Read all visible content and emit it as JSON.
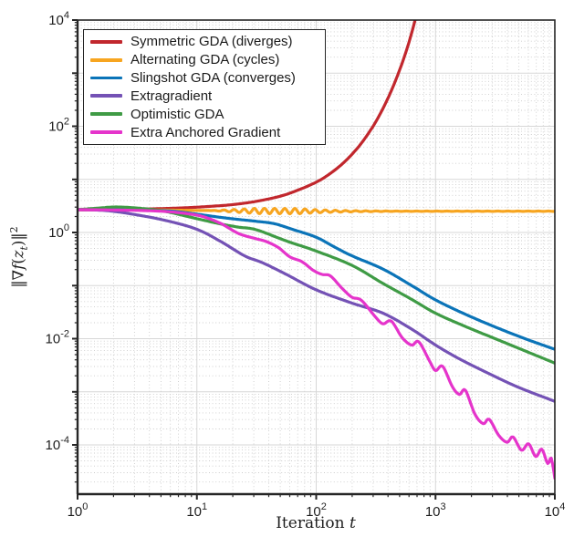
{
  "figure": {
    "background": "#ffffff",
    "axis_color": "#262626",
    "grid_major_color": "#d7d7d7",
    "grid_minor_color": "#cccccc",
    "tick_label_color": "#1f1f1f",
    "tick_base": "10"
  },
  "x_axis": {
    "label_parts": [
      {
        "text": "Iteration ",
        "italic": false
      },
      {
        "text": "t",
        "italic": true
      }
    ],
    "tick_exponents": [
      0,
      1,
      2,
      3,
      4
    ]
  },
  "y_axis": {
    "label_parts": [
      {
        "text": "‖∇",
        "italic": false
      },
      {
        "text": "f",
        "italic": true
      },
      {
        "text": "(",
        "italic": false
      },
      {
        "text": "z",
        "italic": true
      },
      {
        "text": "t",
        "italic": true,
        "script": "sub"
      },
      {
        "text": ")‖",
        "italic": false
      },
      {
        "text": "2",
        "italic": false,
        "script": "sup"
      }
    ],
    "tick_exponents": [
      4,
      2,
      0,
      -2,
      -4
    ]
  },
  "legend": {
    "position": "top-left",
    "items": [
      {
        "label": "Symmetric GDA (diverges)",
        "color": "#C1272D"
      },
      {
        "label": "Alternating GDA (cycles)",
        "color": "#F7A520"
      },
      {
        "label": "Slingshot GDA (converges)",
        "color": "#0B74B8"
      },
      {
        "label": "Extragradient",
        "color": "#7452B5"
      },
      {
        "label": "Optimistic GDA",
        "color": "#3F9B45"
      },
      {
        "label": "Extra Anchored Gradient",
        "color": "#E534CB"
      }
    ]
  },
  "chart_data": {
    "type": "line",
    "x_scale": "log",
    "y_scale": "log",
    "title": "",
    "xlabel": "Iteration t",
    "ylabel": "||∇f(z_t)||^2",
    "xlim": [
      1,
      10000
    ],
    "ylim": [
      1.2e-05,
      10000
    ],
    "grid": "major solid, minor dotted",
    "legend_position": "top-left",
    "note": "points_log10 are [log10(t), log10(value)] control points read from the figure",
    "series": [
      {
        "name": "Symmetric GDA (diverges)",
        "color": "#C1272D",
        "points_log10": [
          [
            0,
            0.425
          ],
          [
            0.3,
            0.43
          ],
          [
            0.6,
            0.443
          ],
          [
            0.9,
            0.465
          ],
          [
            1.1,
            0.49
          ],
          [
            1.3,
            0.525
          ],
          [
            1.5,
            0.587
          ],
          [
            1.7,
            0.684
          ],
          [
            1.85,
            0.8
          ],
          [
            2.0,
            0.947
          ],
          [
            2.1,
            1.083
          ],
          [
            2.2,
            1.255
          ],
          [
            2.3,
            1.472
          ],
          [
            2.4,
            1.745
          ],
          [
            2.5,
            2.088
          ],
          [
            2.6,
            2.52
          ],
          [
            2.7,
            3.064
          ],
          [
            2.78,
            3.6
          ],
          [
            2.85,
            4.18
          ]
        ]
      },
      {
        "name": "Alternating GDA (cycles)",
        "color": "#F7A520",
        "baseline_log10": [
          [
            0,
            0.43
          ],
          [
            0.6,
            0.425
          ],
          [
            1.0,
            0.415
          ],
          [
            1.5,
            0.405
          ],
          [
            2.0,
            0.4
          ],
          [
            3.0,
            0.4
          ],
          [
            4.0,
            0.4
          ]
        ],
        "oscillation": {
          "period_log10": 0.085,
          "amp_max": 0.05,
          "ramp_start": 1.12,
          "ramp_end": 1.5,
          "decay_start": 1.85,
          "decay_rate": 3.2,
          "amp_min": 0.003
        }
      },
      {
        "name": "Slingshot GDA (converges)",
        "color": "#0B74B8",
        "points_log10": [
          [
            0,
            0.43
          ],
          [
            0.3,
            0.43
          ],
          [
            0.6,
            0.42
          ],
          [
            0.8,
            0.4
          ],
          [
            1.0,
            0.345
          ],
          [
            1.25,
            0.27
          ],
          [
            1.5,
            0.21
          ],
          [
            1.65,
            0.165
          ],
          [
            1.8,
            0.06
          ],
          [
            2.0,
            -0.09
          ],
          [
            2.15,
            -0.27
          ],
          [
            2.3,
            -0.44
          ],
          [
            2.56,
            -0.69
          ],
          [
            2.8,
            -1.0
          ],
          [
            3.0,
            -1.27
          ],
          [
            3.25,
            -1.54
          ],
          [
            3.5,
            -1.78
          ],
          [
            3.75,
            -2.0
          ],
          [
            4.0,
            -2.2
          ]
        ]
      },
      {
        "name": "Extragradient",
        "color": "#7452B5",
        "points_log10": [
          [
            0,
            0.43
          ],
          [
            0.25,
            0.41
          ],
          [
            0.5,
            0.33
          ],
          [
            0.75,
            0.22
          ],
          [
            1.0,
            0.06
          ],
          [
            1.2,
            -0.17
          ],
          [
            1.4,
            -0.44
          ],
          [
            1.55,
            -0.57
          ],
          [
            1.75,
            -0.79
          ],
          [
            2.0,
            -1.08
          ],
          [
            2.3,
            -1.33
          ],
          [
            2.56,
            -1.52
          ],
          [
            2.8,
            -1.82
          ],
          [
            3.0,
            -2.12
          ],
          [
            3.2,
            -2.38
          ],
          [
            3.45,
            -2.66
          ],
          [
            3.7,
            -2.92
          ],
          [
            4.0,
            -3.18
          ]
        ]
      },
      {
        "name": "Optimistic GDA",
        "color": "#3F9B45",
        "points_log10": [
          [
            0,
            0.43
          ],
          [
            0.18,
            0.46
          ],
          [
            0.32,
            0.48
          ],
          [
            0.5,
            0.46
          ],
          [
            0.7,
            0.41
          ],
          [
            0.85,
            0.34
          ],
          [
            1.0,
            0.26
          ],
          [
            1.2,
            0.16
          ],
          [
            1.35,
            0.1
          ],
          [
            1.5,
            0.05
          ],
          [
            1.75,
            -0.16
          ],
          [
            2.0,
            -0.35
          ],
          [
            2.3,
            -0.62
          ],
          [
            2.56,
            -0.96
          ],
          [
            2.8,
            -1.26
          ],
          [
            3.0,
            -1.52
          ],
          [
            3.25,
            -1.77
          ],
          [
            3.5,
            -2.0
          ],
          [
            3.75,
            -2.23
          ],
          [
            4.0,
            -2.46
          ]
        ]
      },
      {
        "name": "Extra Anchored Gradient",
        "color": "#E534CB",
        "points_log10": [
          [
            0,
            0.43
          ],
          [
            0.4,
            0.42
          ],
          [
            0.7,
            0.4
          ],
          [
            0.9,
            0.36
          ],
          [
            1.05,
            0.3
          ],
          [
            1.2,
            0.17
          ],
          [
            1.35,
            -0.02
          ],
          [
            1.5,
            -0.12
          ],
          [
            1.58,
            -0.17
          ],
          [
            1.68,
            -0.28
          ],
          [
            1.78,
            -0.46
          ],
          [
            1.88,
            -0.55
          ],
          [
            1.98,
            -0.72
          ],
          [
            2.05,
            -0.79
          ],
          [
            2.12,
            -0.82
          ],
          [
            2.22,
            -1.06
          ],
          [
            2.3,
            -1.22
          ],
          [
            2.38,
            -1.28
          ],
          [
            2.5,
            -1.6
          ],
          [
            2.56,
            -1.72
          ],
          [
            2.63,
            -1.67
          ],
          [
            2.72,
            -1.98
          ],
          [
            2.8,
            -2.12
          ],
          [
            2.86,
            -2.06
          ],
          [
            2.95,
            -2.42
          ],
          [
            3.0,
            -2.6
          ],
          [
            3.06,
            -2.52
          ],
          [
            3.14,
            -2.9
          ],
          [
            3.2,
            -3.05
          ],
          [
            3.25,
            -2.97
          ],
          [
            3.33,
            -3.42
          ],
          [
            3.4,
            -3.6
          ],
          [
            3.45,
            -3.52
          ],
          [
            3.53,
            -3.82
          ],
          [
            3.6,
            -3.95
          ],
          [
            3.65,
            -3.85
          ],
          [
            3.72,
            -4.1
          ],
          [
            3.78,
            -3.98
          ],
          [
            3.84,
            -4.22
          ],
          [
            3.89,
            -4.08
          ],
          [
            3.94,
            -4.35
          ],
          [
            3.97,
            -4.25
          ],
          [
            4.0,
            -4.63
          ]
        ]
      }
    ]
  }
}
